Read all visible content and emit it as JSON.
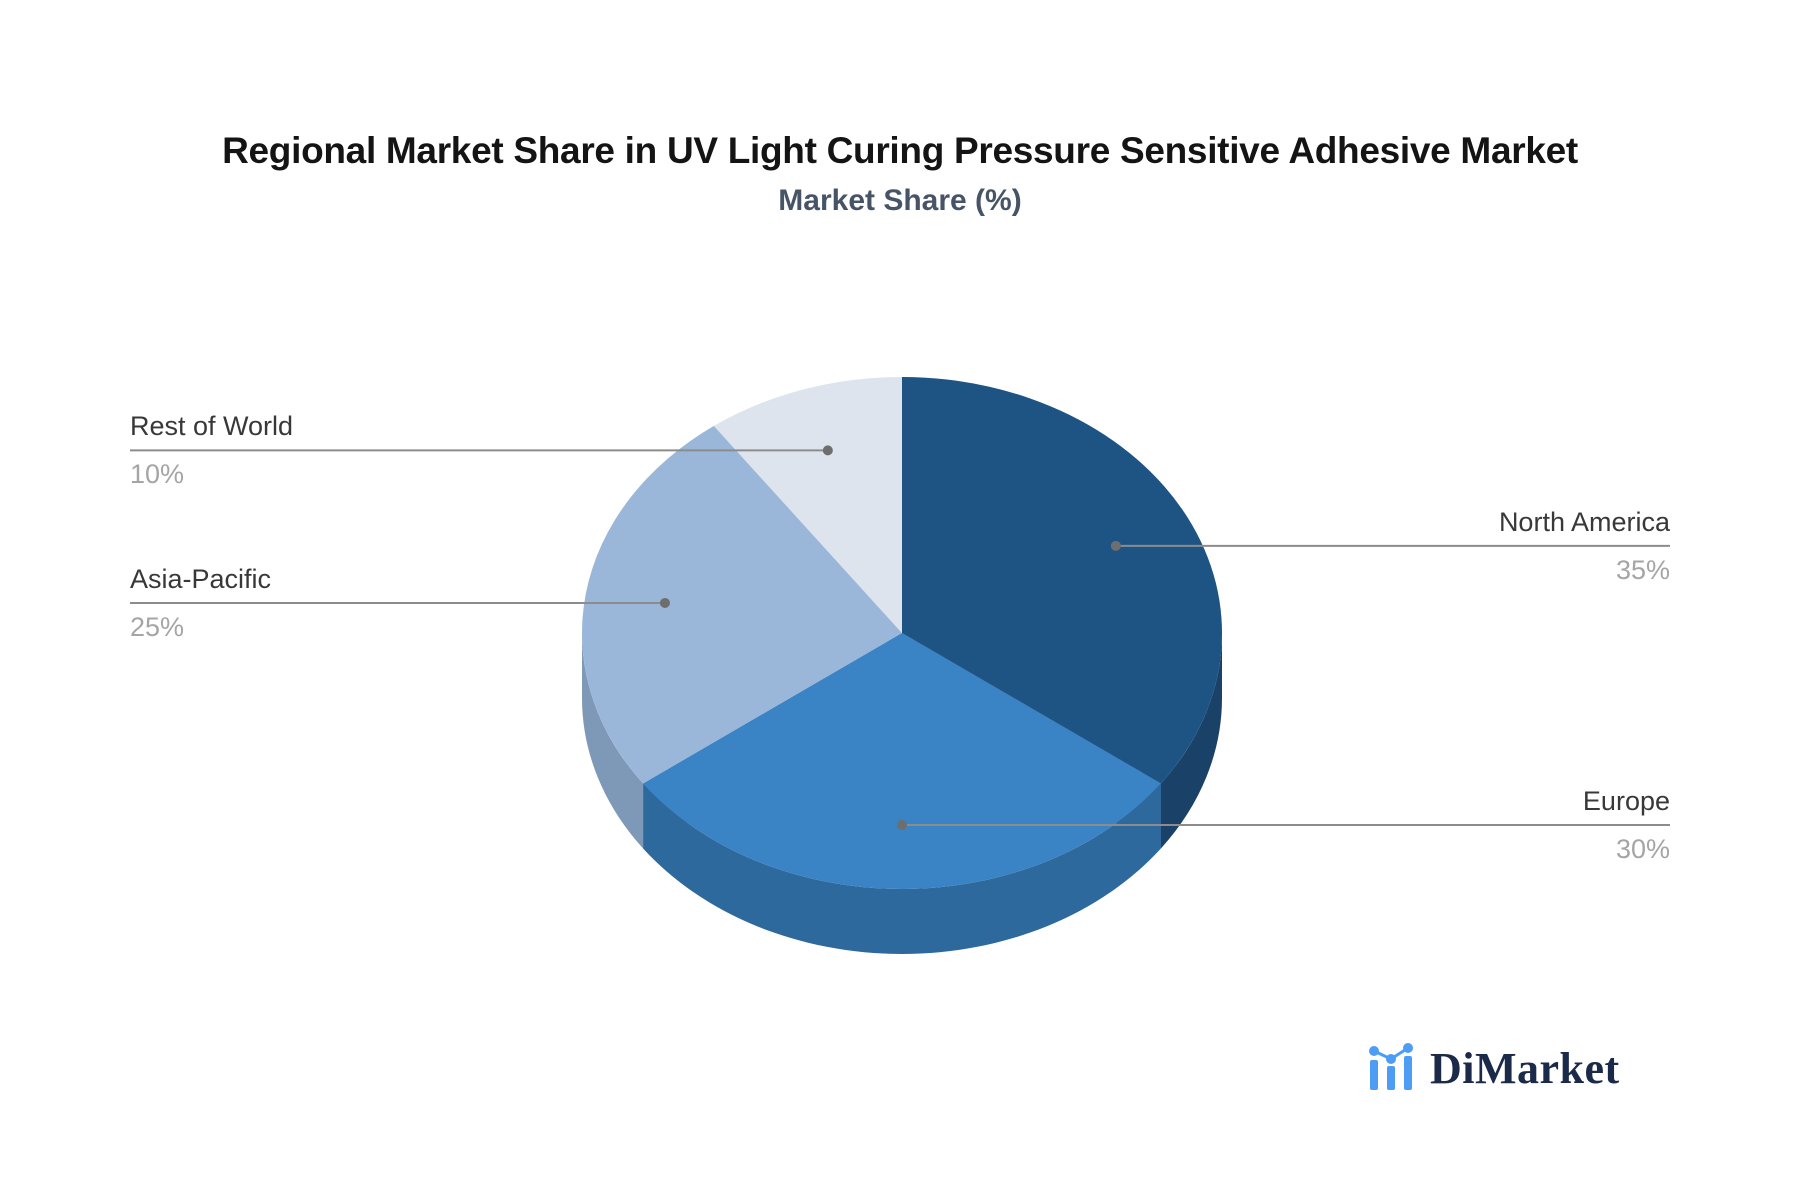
{
  "header": {
    "title": "Regional Market Share in UV Light Curing Pressure Sensitive Adhesive Market",
    "subtitle": "Market Share (%)"
  },
  "logo": {
    "text": "DiMarket",
    "icon": "bar-line-chart-icon",
    "icon_color": "#4d9df5",
    "text_color": "#1b2a49"
  },
  "style": {
    "leader_line_color": "#8c8c8c",
    "leader_dot_color": "#6e6e6e",
    "label_text_color": "#383838",
    "percent_text_color": "#a5a5a5",
    "background_color": "#ffffff"
  },
  "chart_data": {
    "type": "pie",
    "effect": "3d",
    "title": "Regional Market Share in UV Light Curing Pressure Sensitive Adhesive Market",
    "subtitle": "Market Share (%)",
    "unit": "%",
    "start_at_top": true,
    "clockwise": true,
    "legend_position": "callout-labels",
    "slices": [
      {
        "label": "North America",
        "value": 35,
        "pct_label": "35%",
        "color": "#1e5484",
        "side_color": "#1a4268",
        "label_side": "right"
      },
      {
        "label": "Europe",
        "value": 30,
        "pct_label": "30%",
        "color": "#3a83c5",
        "side_color": "#2d699c",
        "label_side": "right"
      },
      {
        "label": "Asia-Pacific",
        "value": 25,
        "pct_label": "25%",
        "color": "#9ab7d9",
        "side_color": "#7e98b7",
        "label_side": "left"
      },
      {
        "label": "Rest of World",
        "value": 10,
        "pct_label": "10%",
        "color": "#dde4ee",
        "side_color": "#bac6d6",
        "label_side": "left"
      }
    ]
  }
}
